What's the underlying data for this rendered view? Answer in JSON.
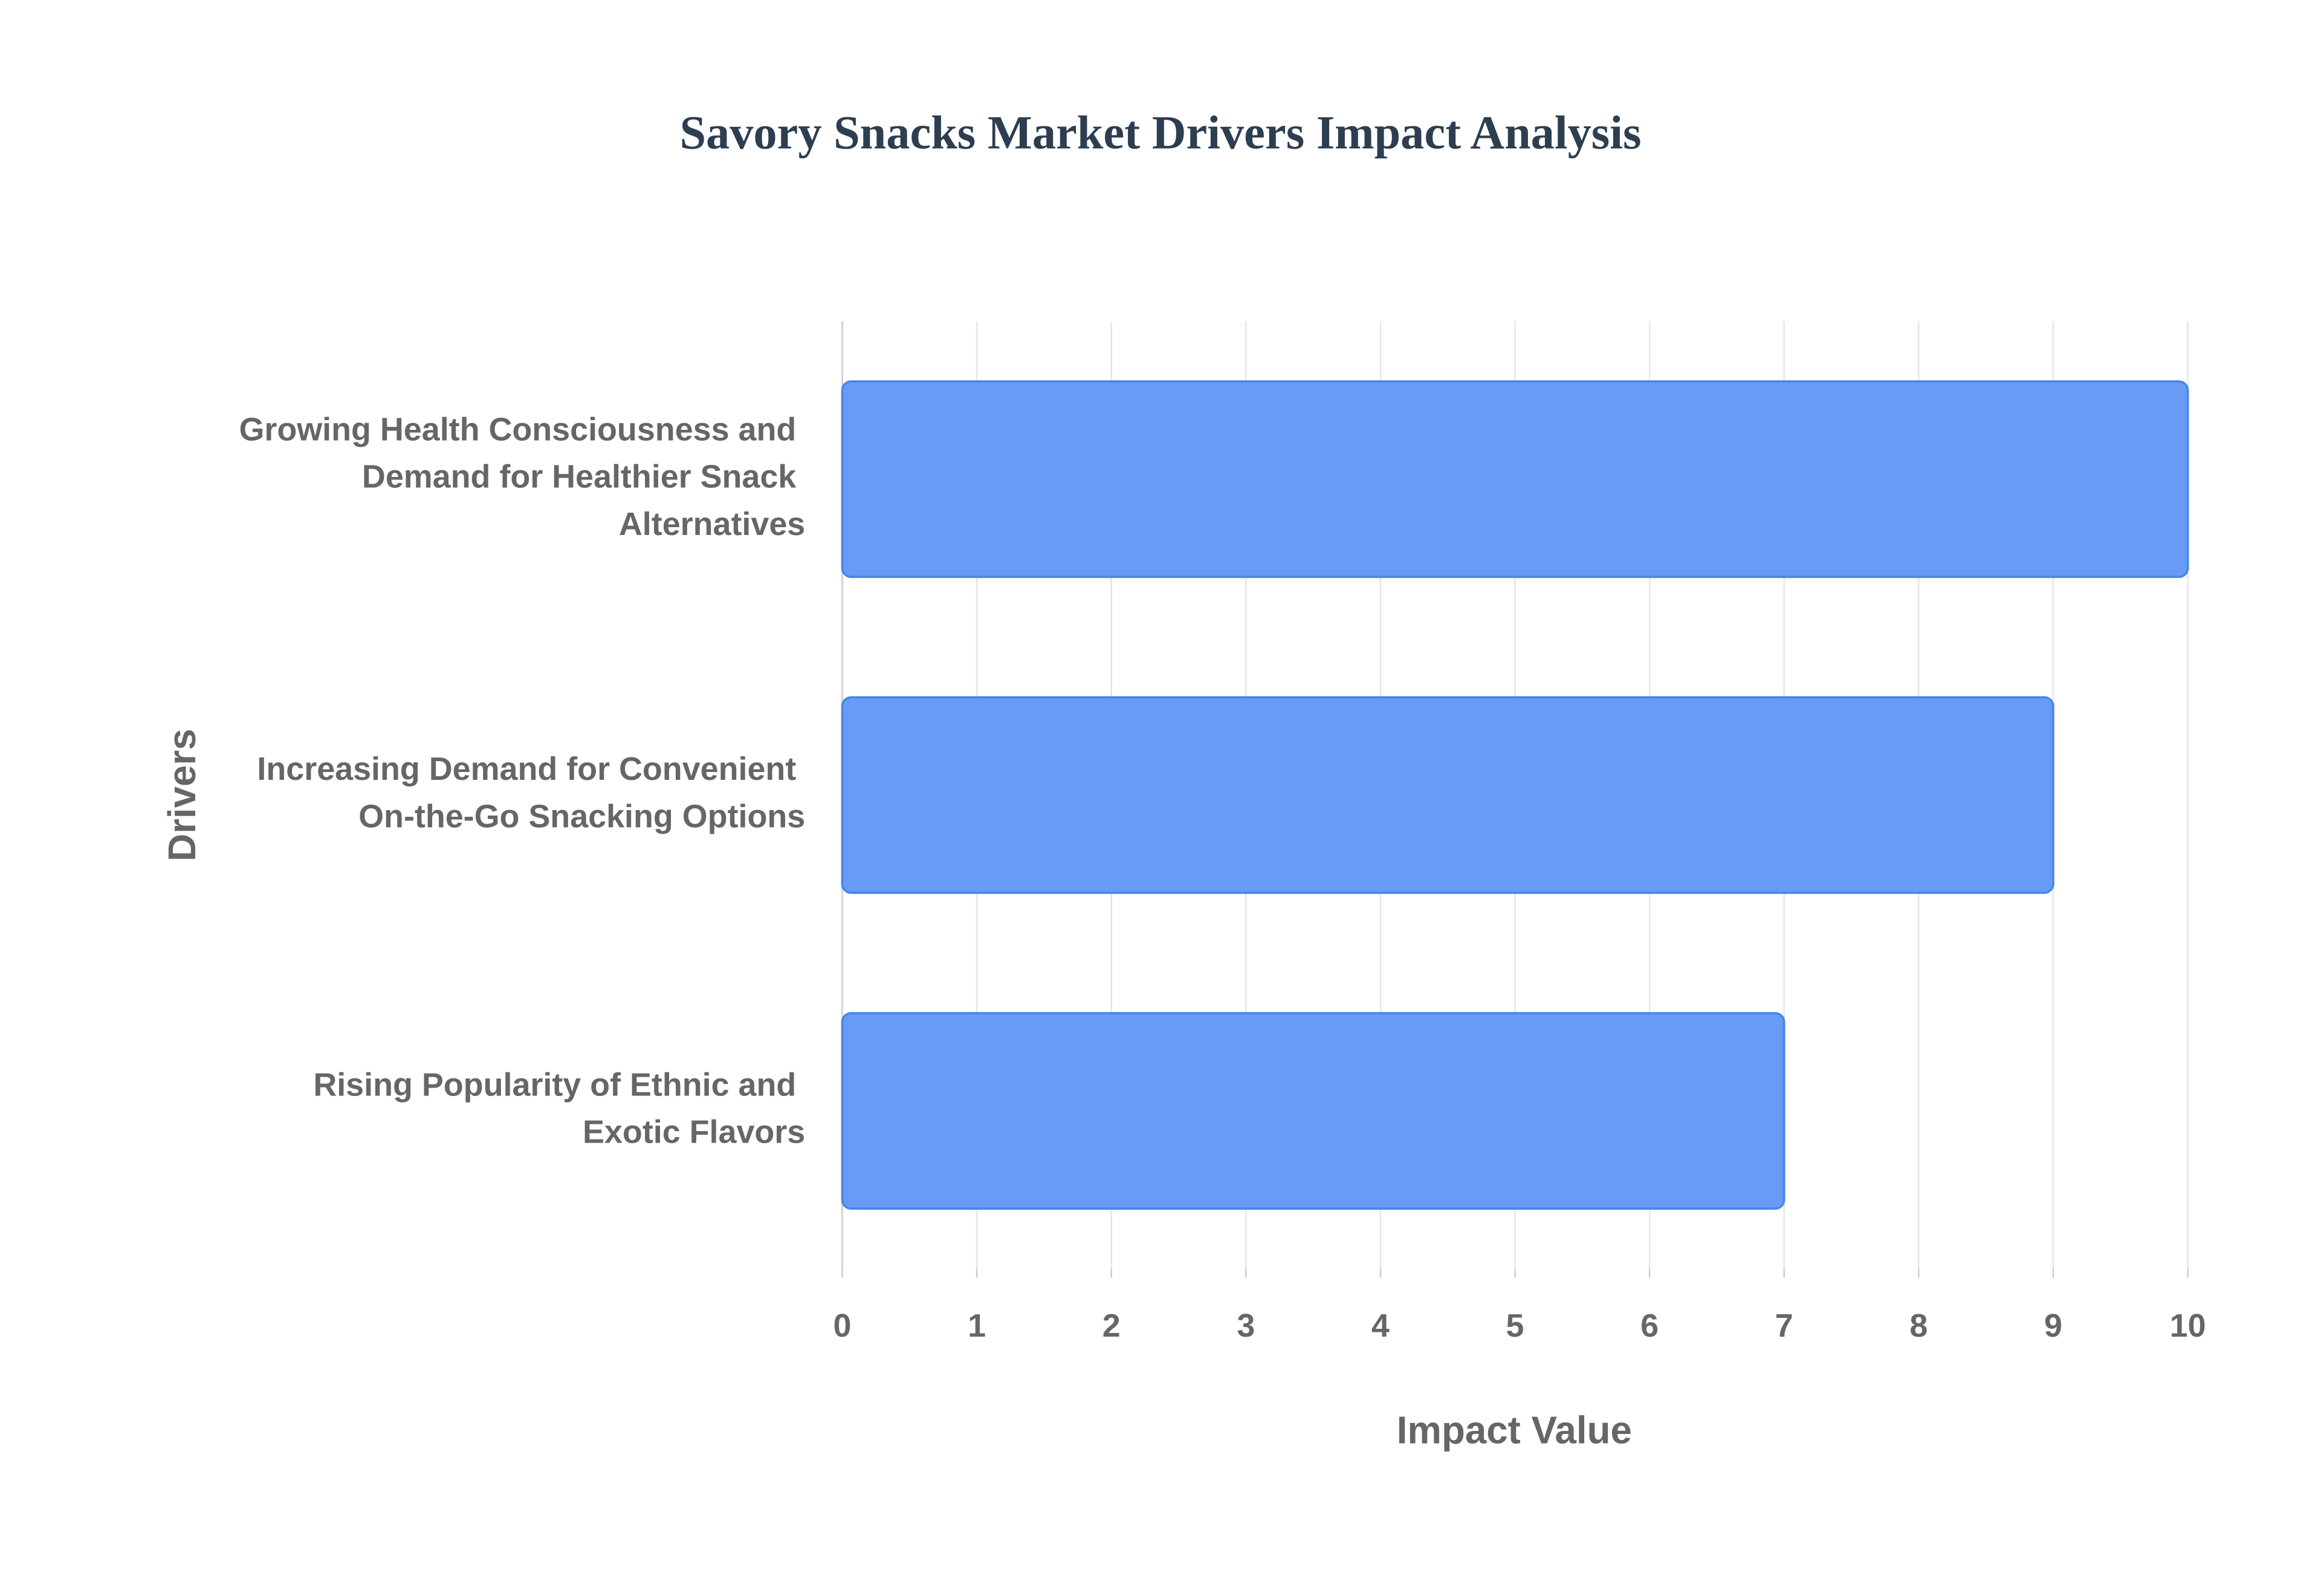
{
  "chart_data": {
    "type": "bar",
    "orientation": "horizontal",
    "title": "Savory Snacks Market Drivers Impact Analysis",
    "x_label": "Impact Value",
    "y_label": "Drivers",
    "categories": [
      "Growing Health Consciousness and Demand for Healthier Snack Alternatives",
      "Increasing Demand for Convenient On-the-Go Snacking Options",
      "Rising Popularity of Ethnic and Exotic Flavors"
    ],
    "values": [
      10,
      9,
      7
    ],
    "color": "#6499f5",
    "xlim": [
      0,
      10
    ],
    "xticks": [
      0,
      1,
      2,
      3,
      4,
      5,
      6,
      7,
      8,
      9,
      10
    ],
    "grid": true
  }
}
